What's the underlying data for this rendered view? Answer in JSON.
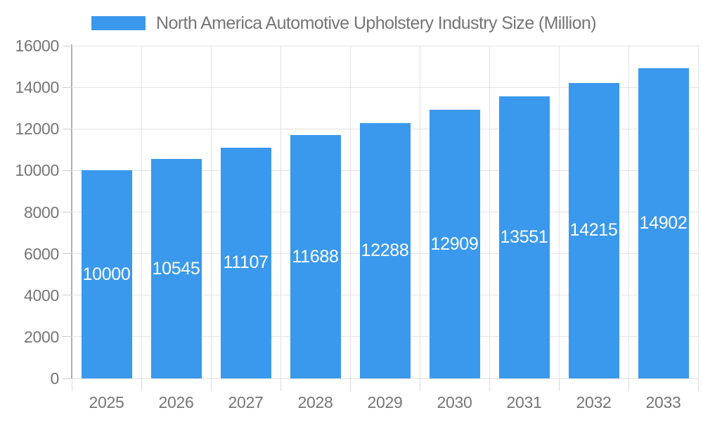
{
  "legend": {
    "label": "North America Automotive Upholstery Industry Size (Million)",
    "position": "top"
  },
  "chart_data": {
    "type": "bar",
    "title": "North America Automotive Upholstery Industry Size (Million)",
    "series_name": "North America Automotive Upholstery Industry Size (Million)",
    "categories": [
      "2025",
      "2026",
      "2027",
      "2028",
      "2029",
      "2030",
      "2031",
      "2032",
      "2033"
    ],
    "values": [
      10000,
      10545,
      11107,
      11688,
      12288,
      12909,
      13551,
      14215,
      14902
    ],
    "value_labels": [
      "10000",
      "10545",
      "11107",
      "11688",
      "12288",
      "12909",
      "13551",
      "14215",
      "14902"
    ],
    "xlabel": "",
    "ylabel": "",
    "ylim": [
      0,
      16000
    ],
    "ytick_step": 2000,
    "ytick_labels": [
      "0",
      "2000",
      "4000",
      "6000",
      "8000",
      "10000",
      "12000",
      "14000",
      "16000"
    ],
    "grid": true,
    "legend_position": "top",
    "colors": {
      "bar": "#3a99ec",
      "grid": "#e2e2e2",
      "axis_line": "#aeaeae",
      "tick": "#d9d9d9",
      "axis_text": "#757575",
      "value_text": "#ffffff",
      "background": "#ffffff"
    }
  }
}
